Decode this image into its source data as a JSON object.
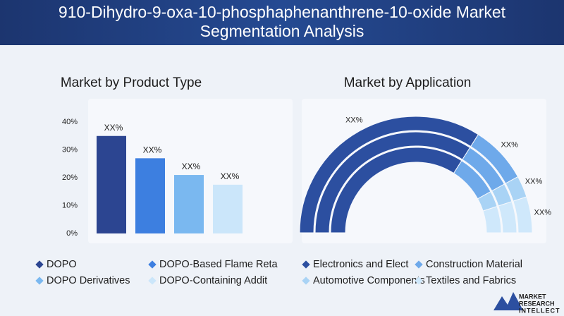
{
  "header": {
    "title": "910-Dihydro-9-oxa-10-phosphaphenanthrene-10-oxide Market Segmentation Analysis"
  },
  "chart_data": [
    {
      "type": "bar",
      "title": "Market by Product Type",
      "categories": [
        "DOPO",
        "DOPO-Based Flame Reta",
        "DOPO Derivatives",
        "DOPO-Containing Addit"
      ],
      "values": [
        35,
        27,
        21,
        17.5
      ],
      "value_labels": [
        "XX%",
        "XX%",
        "XX%",
        "XX%"
      ],
      "colors": [
        "#2c4591",
        "#3d7fe0",
        "#7ab8f0",
        "#cbe6fa"
      ],
      "ylim": [
        0,
        40
      ],
      "yticks": [
        {
          "value": 0,
          "label": "0%"
        },
        {
          "value": 10,
          "label": "10%"
        },
        {
          "value": 20,
          "label": "20%"
        },
        {
          "value": 30,
          "label": "30%"
        },
        {
          "value": 40,
          "label": "40%"
        }
      ],
      "legend": "bottom"
    },
    {
      "type": "semi-donut",
      "title": "Market by Application",
      "categories": [
        "Electronics and Elect",
        "Construction Material",
        "Automotive Components",
        "Textiles and Fabrics"
      ],
      "values": [
        68,
        16,
        6,
        10
      ],
      "value_labels": [
        "XX%",
        "XX%",
        "XX%",
        "XX%"
      ],
      "colors": [
        "#2c4fa0",
        "#6ea9ea",
        "#a9d3f5",
        "#cfe8fb"
      ],
      "legend": "bottom"
    }
  ],
  "logo": {
    "lines": [
      "MARKET",
      "RESEARCH",
      "INTELLECT"
    ]
  }
}
